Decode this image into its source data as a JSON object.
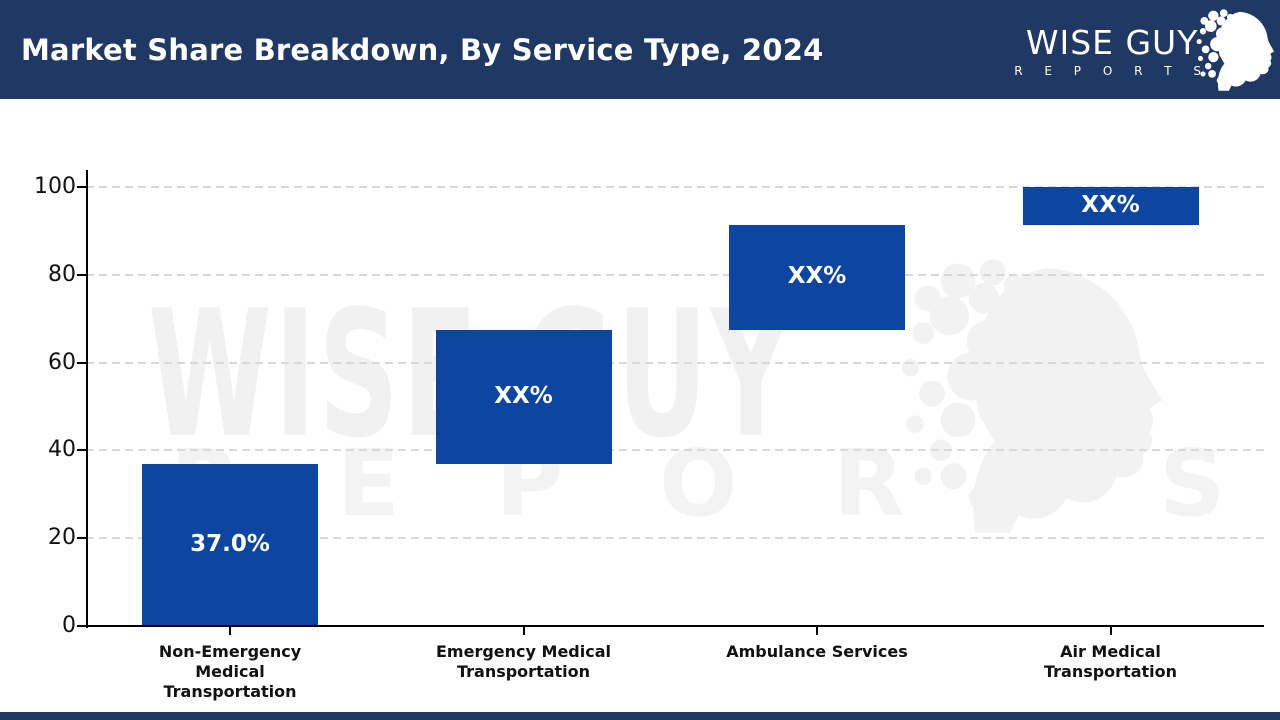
{
  "header": {
    "title": "Market Share Breakdown, By Service Type, 2024",
    "logo": {
      "name": "WISE GUY",
      "sub": "R E P O R T S"
    }
  },
  "watermark": {
    "line1": "WISE GUY",
    "line2": "R E P O R T S"
  },
  "colors": {
    "header_bg": "#1f3864",
    "footer_bg": "#1f3864",
    "bar": "#0d46a0",
    "bar_label": "#ffffff",
    "axis": "#000000",
    "grid": "#d9d9d9",
    "watermark": "#f2f2f2",
    "background": "#ffffff"
  },
  "chart_data": {
    "type": "bar",
    "subtype": "waterfall-stacked-segments",
    "title": "Market Share Breakdown, By Service Type, 2024",
    "xlabel": "",
    "ylabel": "",
    "ylim": [
      0,
      104
    ],
    "yticks": [
      0,
      20,
      40,
      60,
      80,
      100
    ],
    "grid": "horizontal-dashed",
    "legend": "none",
    "bar_color": "#0d46a0",
    "categories": [
      {
        "lines": [
          "Non-Emergency",
          "Medical",
          "Transportation"
        ]
      },
      {
        "lines": [
          "Emergency Medical",
          "Transportation"
        ]
      },
      {
        "lines": [
          "Ambulance Services"
        ]
      },
      {
        "lines": [
          "Air Medical",
          "Transportation"
        ]
      }
    ],
    "segments": [
      {
        "category": "Non-Emergency Medical Transportation",
        "start": 0,
        "end": 37,
        "label": "37.0%"
      },
      {
        "category": "Emergency Medical Transportation",
        "start": 37,
        "end": 67.5,
        "label": "XX%"
      },
      {
        "category": "Ambulance Services",
        "start": 67.5,
        "end": 91.3,
        "label": "XX%"
      },
      {
        "category": "Air Medical Transportation",
        "start": 91.3,
        "end": 100,
        "label": "XX%"
      }
    ]
  }
}
